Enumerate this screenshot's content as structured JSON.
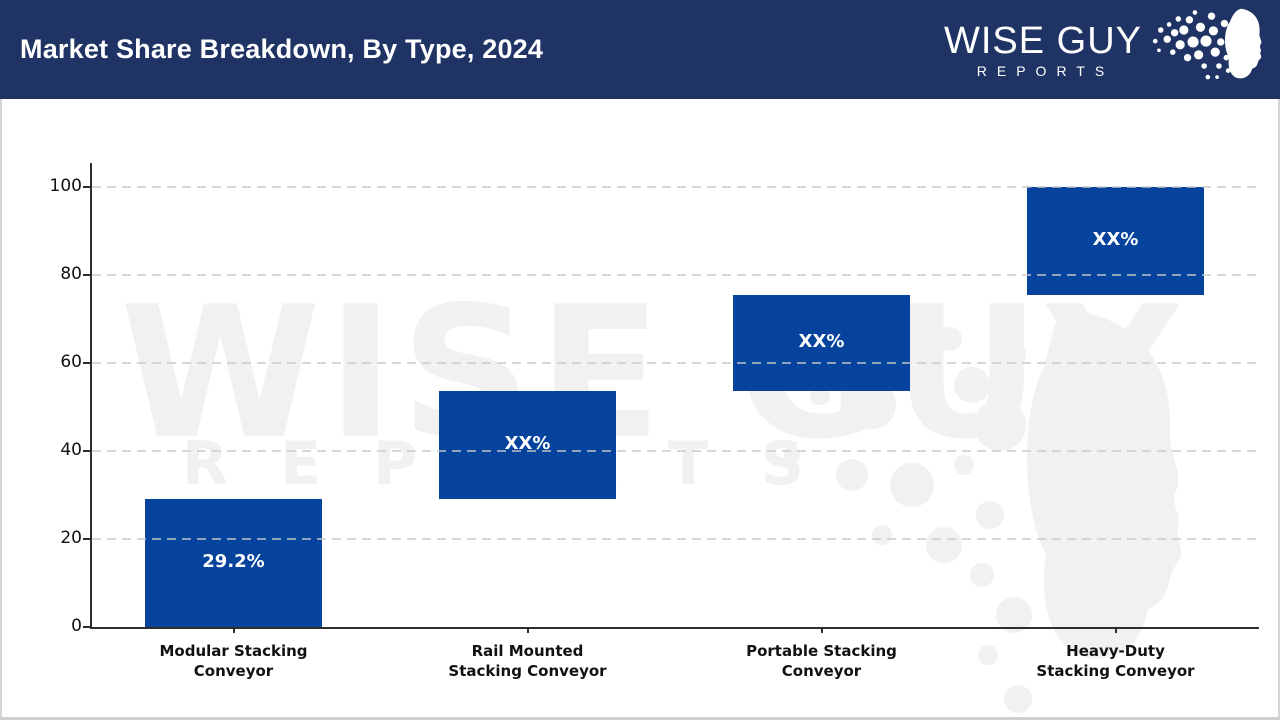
{
  "header": {
    "title": "Market Share Breakdown, By Type, 2024",
    "brand_name": "WISE GUY",
    "brand_sub": "REPORTS",
    "background_color": "#1f3464"
  },
  "watermark": {
    "line1": "WISE GUY",
    "line2": "REPORTS"
  },
  "chart_data": {
    "type": "bar",
    "subtype": "waterfall",
    "title": "Market Share Breakdown, By Type, 2024",
    "categories": [
      "Modular Stacking Conveyor",
      "Rail Mounted Stacking Conveyor",
      "Portable Stacking Conveyor",
      "Heavy-Duty Stacking Conveyor"
    ],
    "categories_lines": [
      [
        "Modular Stacking",
        "Conveyor"
      ],
      [
        "Rail Mounted",
        "Stacking Conveyor"
      ],
      [
        "Portable Stacking",
        "Conveyor"
      ],
      [
        "Heavy-Duty",
        "Stacking Conveyor"
      ]
    ],
    "segments": [
      {
        "category": "Modular Stacking Conveyor",
        "start": 0,
        "end": 29.2,
        "label": "29.2%"
      },
      {
        "category": "Rail Mounted Stacking Conveyor",
        "start": 29.2,
        "end": 53.6,
        "label": "XX%"
      },
      {
        "category": "Portable Stacking Conveyor",
        "start": 53.6,
        "end": 75.4,
        "label": "XX%"
      },
      {
        "category": "Heavy-Duty Stacking Conveyor",
        "start": 75.4,
        "end": 100,
        "label": "XX%"
      }
    ],
    "yticks": [
      0,
      20,
      40,
      60,
      80,
      100
    ],
    "ylim": [
      0,
      105.5
    ],
    "xlabel": "",
    "ylabel": "",
    "legend": "none",
    "grid": "horizontal-dashed",
    "bar_color": "#06439c",
    "grid_color": "#c8c8c8",
    "axis_color": "#2e2e2e"
  }
}
